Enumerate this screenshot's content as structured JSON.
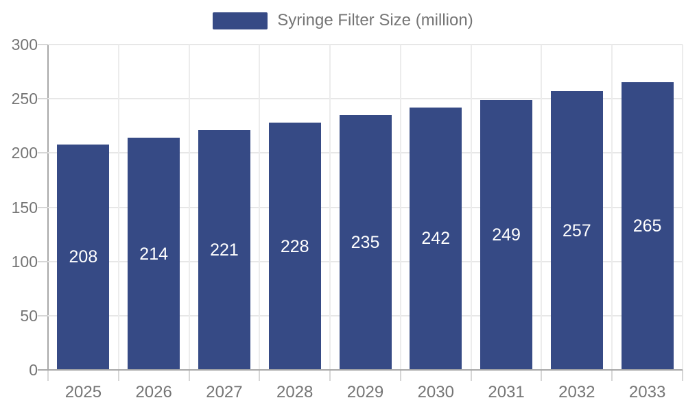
{
  "legend": {
    "label": "Syringe Filter Size (million)"
  },
  "chart_data": {
    "type": "bar",
    "title": "",
    "categories": [
      "2025",
      "2026",
      "2027",
      "2028",
      "2029",
      "2030",
      "2031",
      "2032",
      "2033"
    ],
    "series": [
      {
        "name": "Syringe Filter Size (million)",
        "values": [
          208,
          214,
          221,
          228,
          235,
          242,
          249,
          257,
          265
        ]
      }
    ],
    "xlabel": "",
    "ylabel": "",
    "ylim": [
      0,
      300
    ],
    "yticks": [
      0,
      50,
      100,
      150,
      200,
      250,
      300
    ],
    "grid": true,
    "legend_position": "top",
    "bar_value_labels": "inside-center"
  },
  "style": {
    "bar_color": "#364a85",
    "bar_label_color": "#ffffff",
    "axis_text_color": "#757575",
    "grid_color": "#e7e7e7",
    "tick_color": "#d6d6d6",
    "axis_line_color": "#a8a8a8",
    "background_color": "#ffffff"
  }
}
